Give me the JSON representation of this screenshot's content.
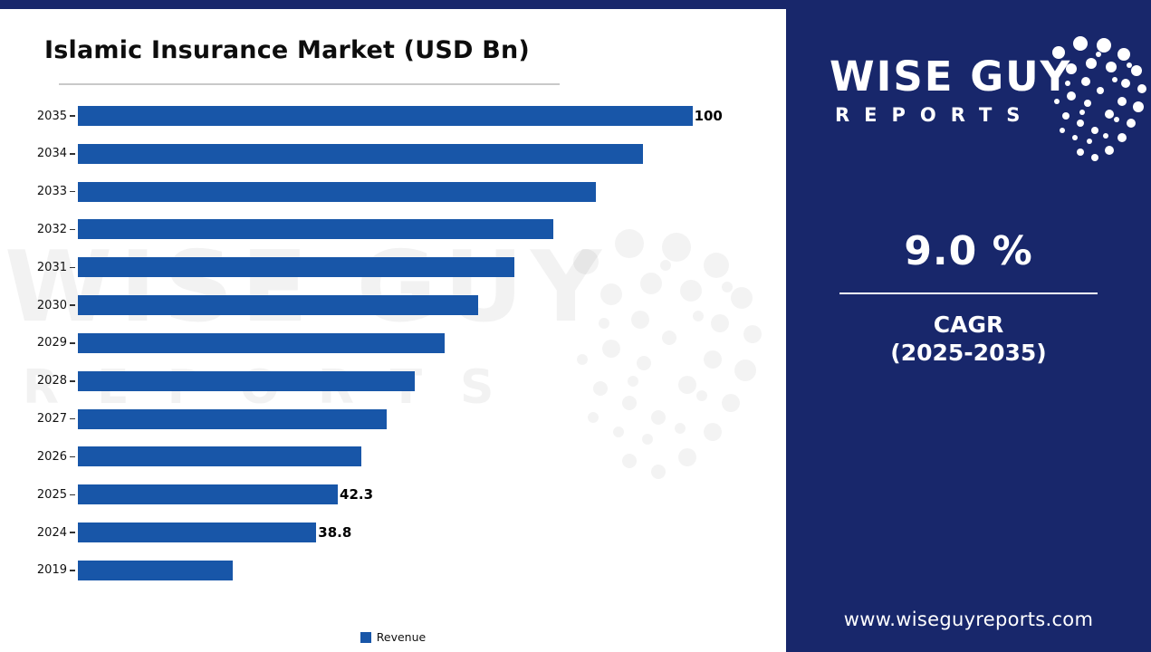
{
  "title": "Islamic Insurance Market (USD Bn)",
  "chart_data": {
    "type": "bar",
    "orientation": "horizontal",
    "title": "Islamic Insurance Market (USD Bn)",
    "xlabel": "",
    "ylabel": "",
    "xlim": [
      0,
      112
    ],
    "legend": [
      "Revenue"
    ],
    "legend_position": "bottom-center",
    "grid": false,
    "rows": [
      {
        "year": "2035",
        "value": 100,
        "label": "100"
      },
      {
        "year": "2034",
        "value": 91.9,
        "label": ""
      },
      {
        "year": "2033",
        "value": 84.3,
        "label": ""
      },
      {
        "year": "2032",
        "value": 77.3,
        "label": ""
      },
      {
        "year": "2031",
        "value": 71.0,
        "label": ""
      },
      {
        "year": "2030",
        "value": 65.1,
        "label": ""
      },
      {
        "year": "2029",
        "value": 59.7,
        "label": ""
      },
      {
        "year": "2028",
        "value": 54.8,
        "label": ""
      },
      {
        "year": "2027",
        "value": 50.3,
        "label": ""
      },
      {
        "year": "2026",
        "value": 46.1,
        "label": ""
      },
      {
        "year": "2025",
        "value": 42.3,
        "label": "42.3"
      },
      {
        "year": "2024",
        "value": 38.8,
        "label": "38.8"
      },
      {
        "year": "2019",
        "value": 25.2,
        "label": ""
      }
    ]
  },
  "legend": {
    "revenue_label": "Revenue"
  },
  "watermark": {
    "line1": "WISE GUY",
    "line2": "REPORTS"
  },
  "side_panel": {
    "brand_line1": "WISE GUY",
    "brand_line2": "REPORTS",
    "cagr_value": "9.0 %",
    "cagr_label_line1": "CAGR",
    "cagr_label_line2": "(2025-2035)",
    "website": "www.wiseguyreports.com"
  },
  "icons": {
    "logo_head": "dotted-head-icon",
    "legend_swatch": "revenue-color-swatch"
  },
  "colors": {
    "bar": "#1856a8",
    "panel_navy": "#18276b",
    "top_strip": "#18276b",
    "title_text": "#0d0d0d",
    "panel_text": "#ffffff"
  }
}
